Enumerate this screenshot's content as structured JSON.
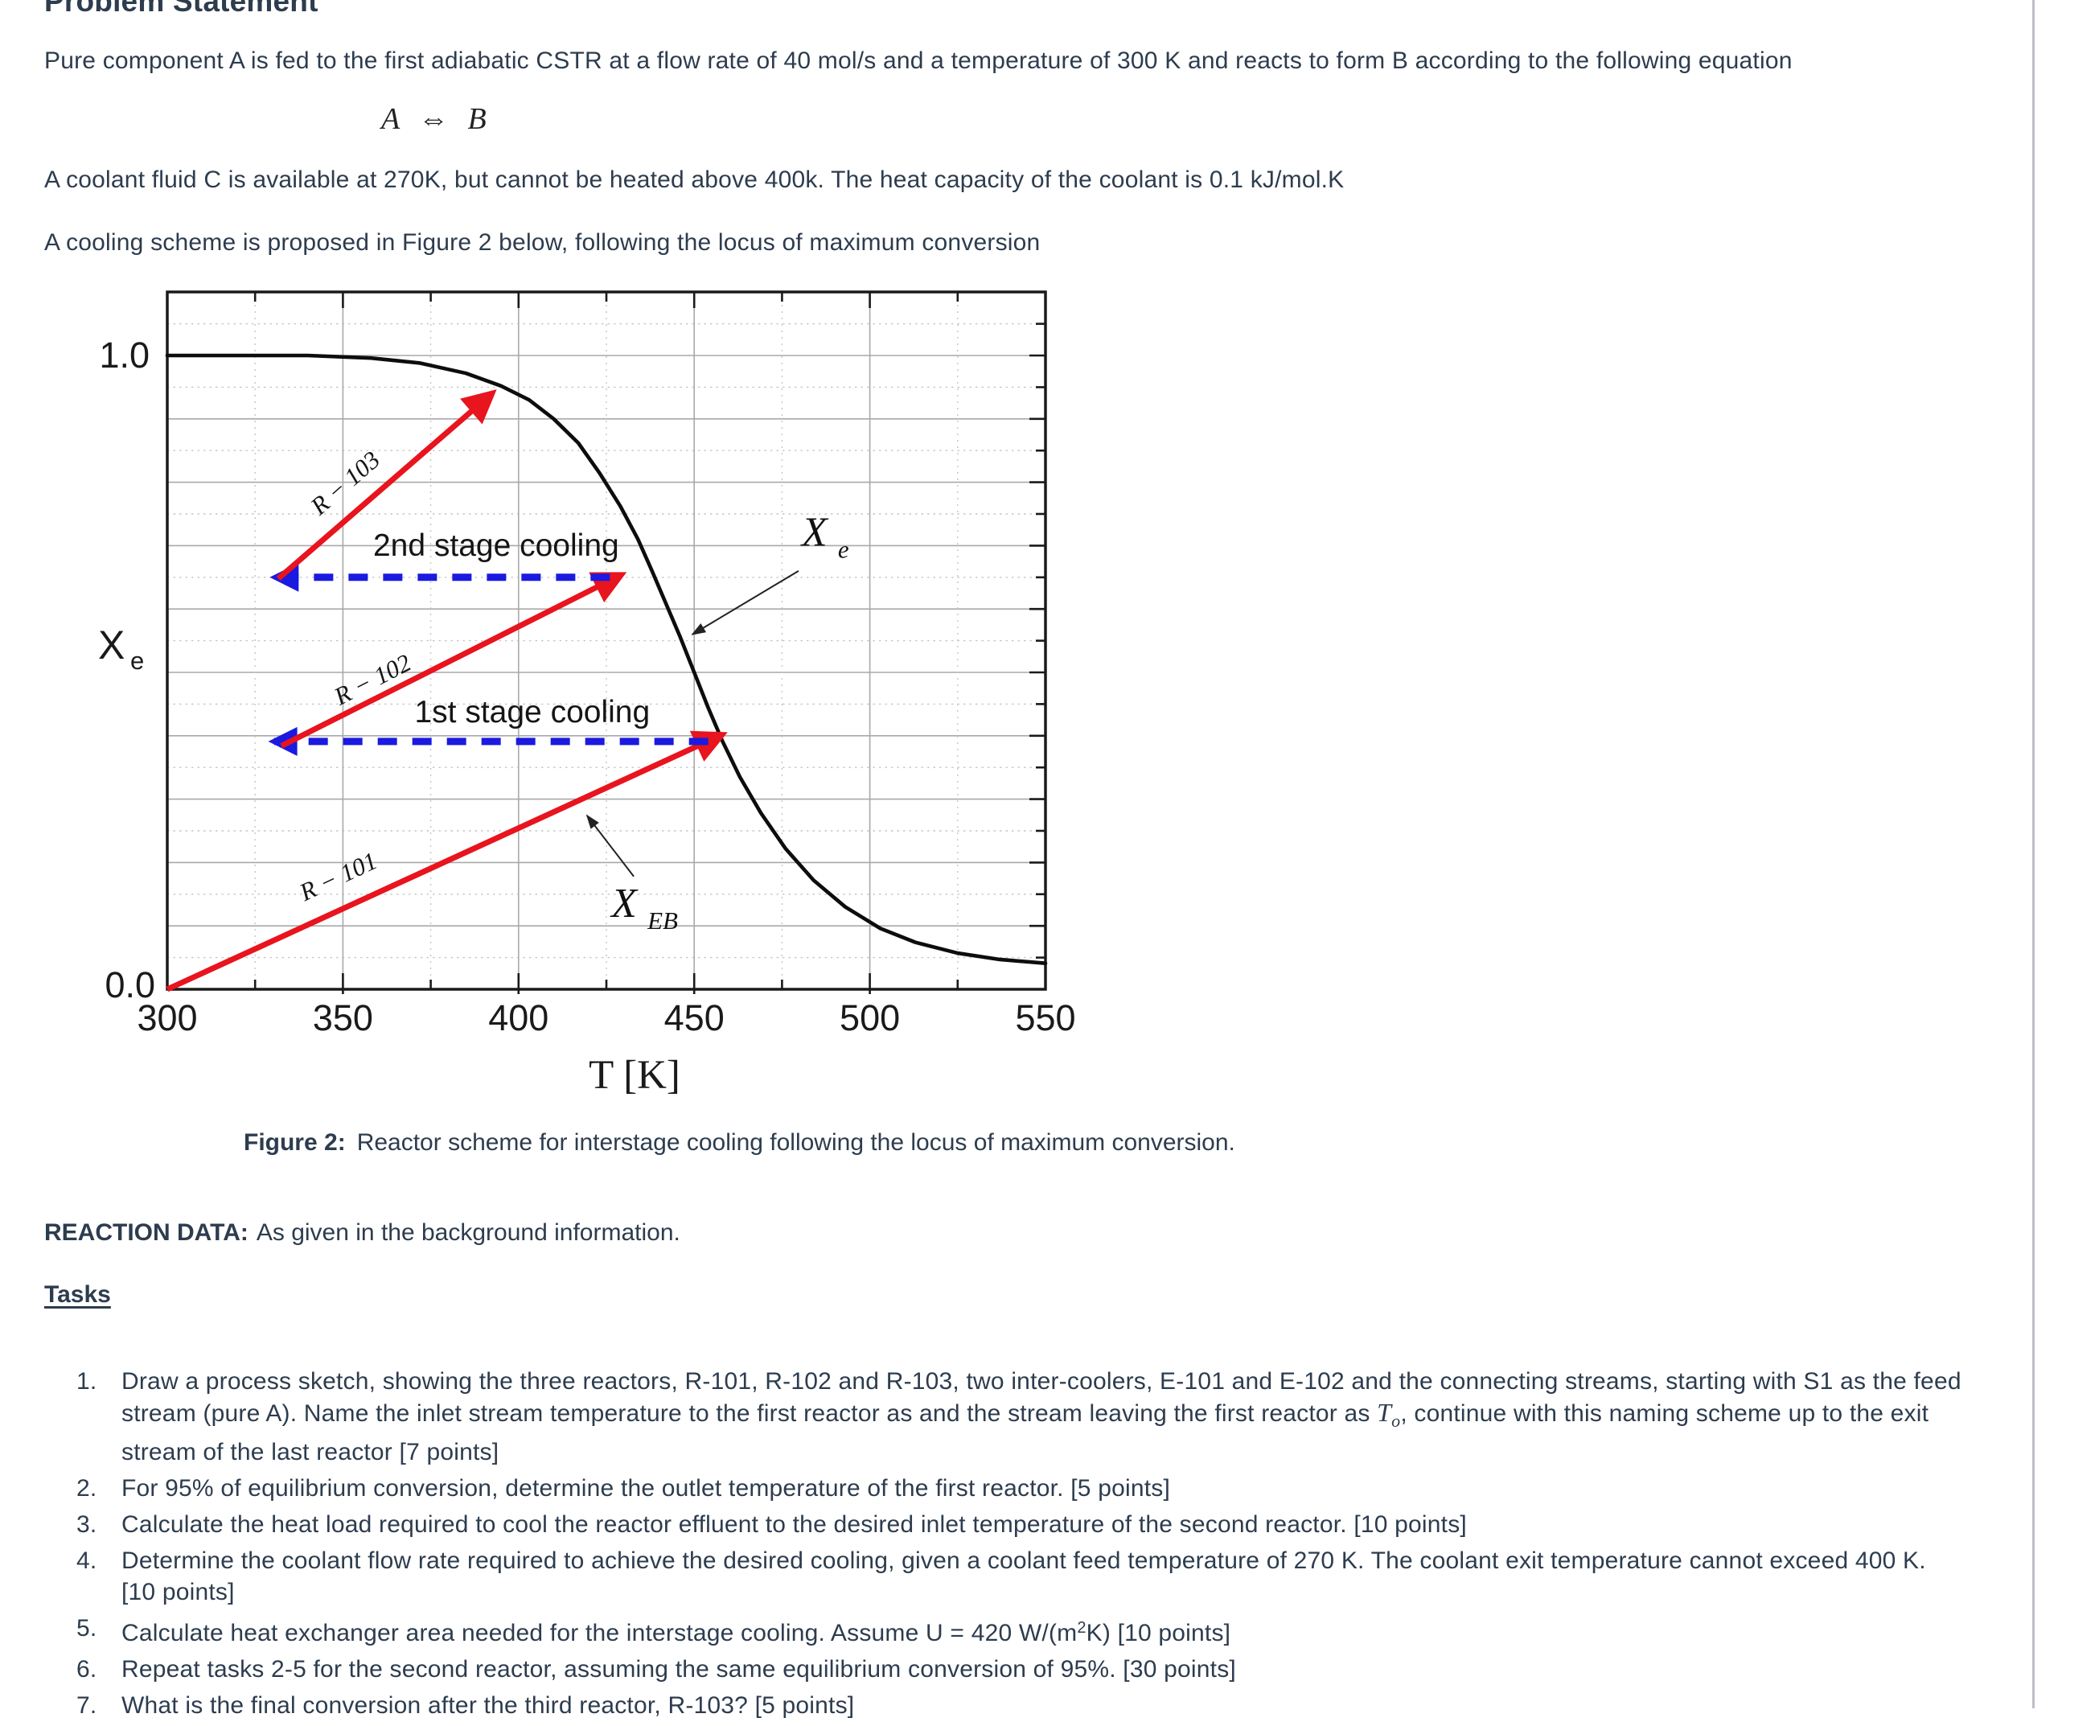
{
  "document": {
    "heading": "Problem Statement",
    "para1": "Pure component A is fed to the first adiabatic CSTR at a flow rate of 40 mol/s and a temperature of 300 K and reacts to form B according to the following equation",
    "equation": "A ⇔ B",
    "para2": "A coolant fluid C is available at 270K, but cannot be heated above 400k.  The heat capacity of the coolant is  0.1 kJ/mol.K",
    "para3": "A cooling scheme is proposed in Figure 2 below, following the locus of maximum conversion",
    "caption_label": "Figure 2:",
    "caption_text": "Reactor scheme for interstage cooling following the locus of maximum conversion.",
    "reaction_label": "REACTION DATA:",
    "reaction_text": "As given in the background information.",
    "tasks_heading": "Tasks",
    "tasks": [
      {
        "num": "1.",
        "parts": [
          {
            "t": "text",
            "v": "Draw a process sketch, showing the three reactors, R-101, R-102 and R-103, two inter-coolers, E-101 and E-102 and the connecting streams, starting with S1 as the feed stream (pure A). Name the inlet stream temperature to the first reactor as and the stream leaving the first reactor as "
          },
          {
            "t": "math",
            "v": "T"
          },
          {
            "t": "sub",
            "v": "o"
          },
          {
            "t": "text",
            "v": ", continue with this naming scheme up to the exit stream of the last reactor [7 points]"
          }
        ]
      },
      {
        "num": "2.",
        "parts": [
          {
            "t": "text",
            "v": "For 95% of equilibrium conversion, determine the outlet temperature of the first reactor. [5 points]"
          }
        ]
      },
      {
        "num": "3.",
        "parts": [
          {
            "t": "text",
            "v": "Calculate the heat load required to cool the reactor effluent to the desired inlet temperature of the second reactor. [10 points]"
          }
        ]
      },
      {
        "num": "4.",
        "parts": [
          {
            "t": "text",
            "v": "Determine the coolant flow rate required to achieve the desired cooling, given a coolant feed temperature of 270 K. The coolant exit temperature cannot exceed 400 K. [10 points]"
          }
        ]
      },
      {
        "num": "5.",
        "parts": [
          {
            "t": "text",
            "v": "Calculate heat exchanger area needed for the interstage cooling. Assume U = 420 W/(m"
          },
          {
            "t": "sup",
            "v": "2"
          },
          {
            "t": "text",
            "v": "K) [10 points]"
          }
        ]
      },
      {
        "num": "6.",
        "parts": [
          {
            "t": "text",
            "v": "Repeat tasks 2-5 for the second reactor, assuming the same equilibrium conversion of 95%. [30 points]"
          }
        ]
      },
      {
        "num": "7.",
        "parts": [
          {
            "t": "text",
            "v": "What is the final conversion after the third reactor, R-103? [5 points]"
          }
        ]
      }
    ]
  },
  "chart_data": {
    "type": "line",
    "title": "",
    "xlabel": "T [K]",
    "ylabel": "Xe",
    "xlim": [
      300,
      550
    ],
    "ylim": [
      0,
      1.1
    ],
    "grid": "on",
    "x_ticks": [
      "300",
      "350",
      "400",
      "450",
      "500",
      "550"
    ],
    "y_tick_labels": {
      "top": "1.0",
      "bottom": "0.0"
    },
    "colors": {
      "curve": "#0d0d0d",
      "red_arrow": "#e8141e",
      "blue_arrow": "#1a1ae0",
      "grid_major": "#a9a9a9",
      "grid_minor": "#c6c6c6",
      "frame": "#1a1a1a"
    },
    "series": [
      {
        "name": "equilibrium-curve",
        "kind": "curve",
        "x": [
          300,
          340,
          358,
          372,
          385,
          395,
          403,
          410,
          417,
          423,
          429,
          434,
          438,
          442,
          446,
          450,
          454,
          458,
          463,
          469,
          476,
          484,
          493,
          503,
          513,
          525,
          537,
          550
        ],
        "y": [
          1.0,
          1.0,
          0.996,
          0.988,
          0.972,
          0.952,
          0.93,
          0.9,
          0.862,
          0.815,
          0.762,
          0.71,
          0.66,
          0.608,
          0.556,
          0.5,
          0.444,
          0.392,
          0.335,
          0.278,
          0.222,
          0.172,
          0.13,
          0.096,
          0.074,
          0.057,
          0.047,
          0.041
        ]
      },
      {
        "name": "R-101-adiabatic-line",
        "kind": "arrow-red",
        "x": [
          300,
          456.9
        ],
        "y": [
          0,
          0.399
        ]
      },
      {
        "name": "1st-stage-cooling-line",
        "kind": "arrow-blue",
        "x": [
          454,
          330.4
        ],
        "y": [
          0.391,
          0.391
        ]
      },
      {
        "name": "R-102-adiabatic-line",
        "kind": "arrow-red",
        "x": [
          332.5,
          428.2
        ],
        "y": [
          0.384,
          0.651
        ]
      },
      {
        "name": "2nd-stage-cooling-line",
        "kind": "arrow-blue",
        "x": [
          426,
          330.8
        ],
        "y": [
          0.65,
          0.65
        ]
      },
      {
        "name": "R-103-adiabatic-line",
        "kind": "arrow-red",
        "x": [
          331.6,
          391.6
        ],
        "y": [
          0.648,
          0.936
        ]
      }
    ],
    "labels": [
      {
        "name": "r101-label",
        "text": "R − 101",
        "t": 349.7,
        "x": 0.18,
        "rot": -25,
        "cls": "rlabel"
      },
      {
        "name": "r102-label",
        "text": "R − 102",
        "t": 359.5,
        "x": 0.491,
        "rot": -27,
        "cls": "rlabel"
      },
      {
        "name": "r103-label",
        "text": "R − 103",
        "t": 352.2,
        "x": 0.803,
        "rot": -41,
        "cls": "rlabel"
      },
      {
        "name": "stage1-cooling-label",
        "text": "1st stage cooling",
        "t": 403.9,
        "x": 0.439,
        "rot": 0,
        "cls": "stage"
      },
      {
        "name": "stage2-cooling-label",
        "text": "2nd stage cooling",
        "t": 393.6,
        "x": 0.702,
        "rot": 0,
        "cls": "stage"
      }
    ],
    "annotations": [
      {
        "name": "xe-annotation",
        "main": "X",
        "sub": "e",
        "t": 480.6,
        "x": 0.7,
        "arrow": {
          "from": [
            479.7,
            0.66
          ],
          "to": [
            449.5,
            0.56
          ]
        }
      },
      {
        "name": "xeb-annotation",
        "main": "X",
        "sub": "EB",
        "t": 426.4,
        "x": 0.114,
        "arrow": {
          "from": [
            432.8,
            0.178
          ],
          "to": [
            419.5,
            0.274
          ]
        }
      }
    ]
  }
}
